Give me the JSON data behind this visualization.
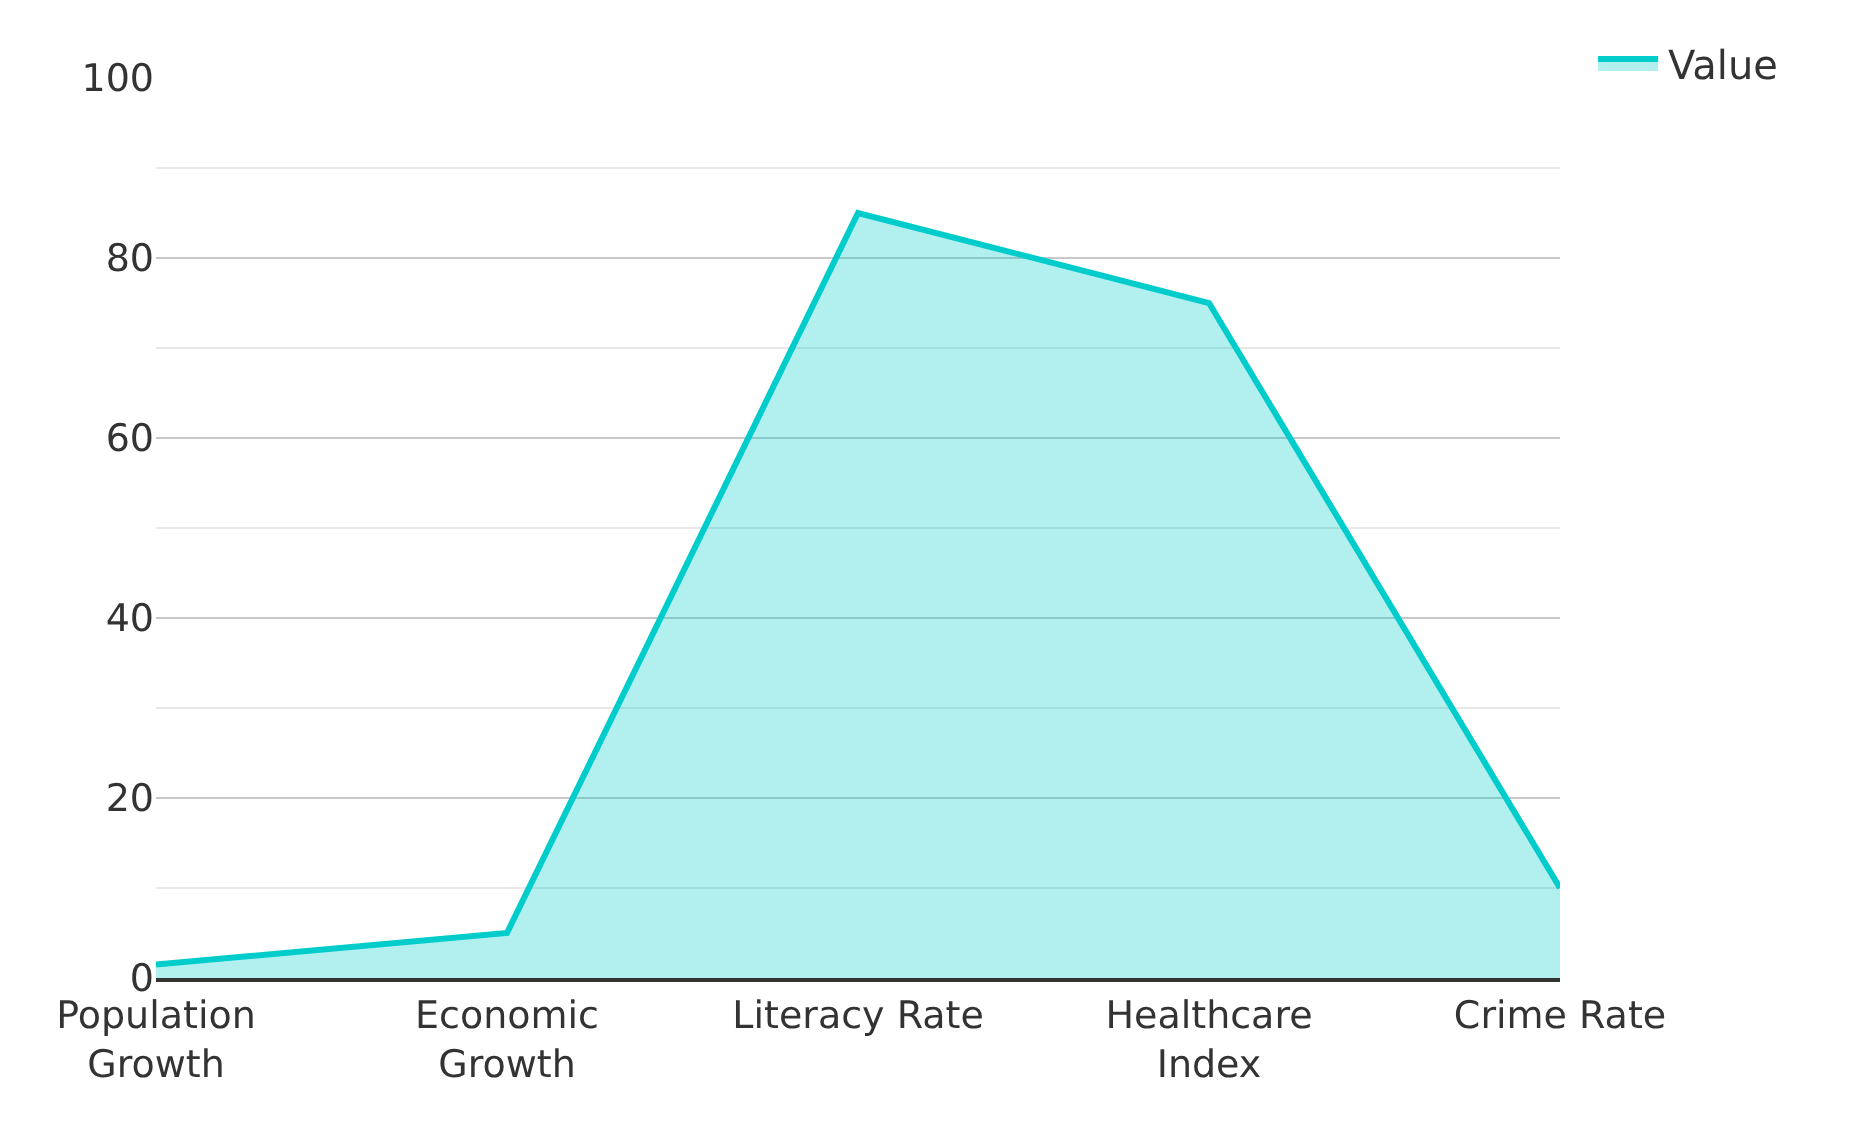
{
  "chart_data": {
    "type": "area",
    "categories": [
      "Population Growth",
      "Economic Growth",
      "Literacy Rate",
      "Healthcare Index",
      "Crime Rate"
    ],
    "series": [
      {
        "name": "Value",
        "color": "#00cccc",
        "values": [
          1.5,
          5,
          85,
          75,
          10
        ]
      }
    ],
    "ylim": [
      0,
      100
    ],
    "yticks": [
      0,
      {
        "value": 10,
        "label": null
      },
      20,
      {
        "value": 30,
        "label": null
      },
      40,
      {
        "value": 50,
        "label": null
      },
      60,
      {
        "value": 70,
        "label": null
      },
      80,
      {
        "value": 90,
        "label": null
      },
      100
    ],
    "grid": "y",
    "legend": "top right"
  }
}
